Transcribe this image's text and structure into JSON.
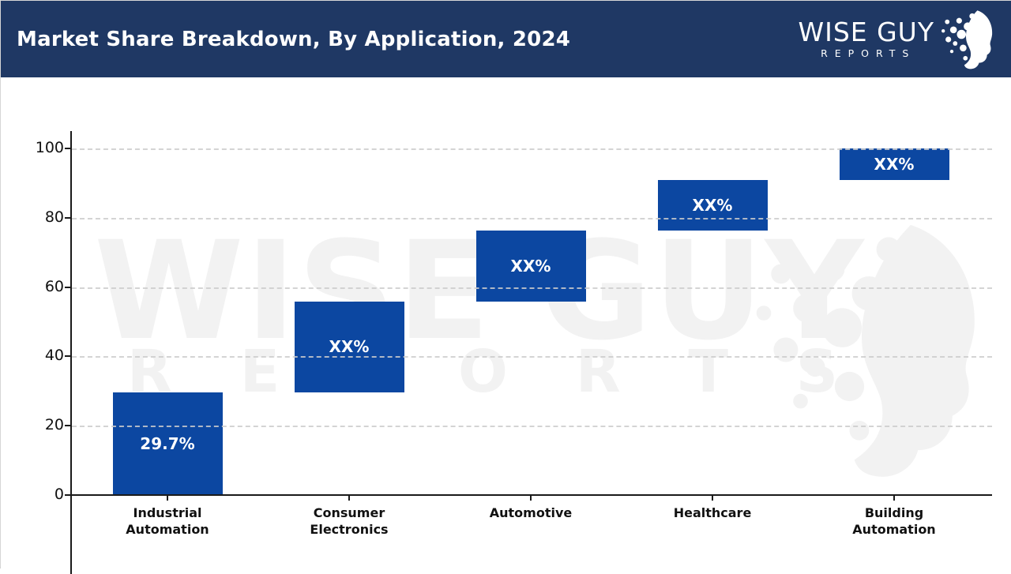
{
  "header": {
    "title": "Market Share Breakdown, By Application, 2024",
    "bg_color": "#1f3864",
    "logo": {
      "line1": "WISE GUY",
      "line2": "REPORTS"
    }
  },
  "watermark": {
    "line1": "WISE GUY",
    "line2": "REPORTS"
  },
  "chart_data": {
    "type": "bar",
    "subtype": "waterfall-floating-bars",
    "title": "Market Share Breakdown, By Application, 2024",
    "categories": [
      "Industrial Automation",
      "Consumer Electronics",
      "Automotive",
      "Healthcare",
      "Building Automation"
    ],
    "category_label_lines": [
      [
        "Industrial",
        "Automation"
      ],
      [
        "Consumer",
        "Electronics"
      ],
      [
        "Automotive"
      ],
      [
        "Healthcare"
      ],
      [
        "Building",
        "Automation"
      ]
    ],
    "segments": [
      {
        "category": "Industrial Automation",
        "start": 0,
        "end": 29.7,
        "label": "29.7%"
      },
      {
        "category": "Consumer Electronics",
        "start": 29.7,
        "end": 55.8,
        "label": "XX%"
      },
      {
        "category": "Automotive",
        "start": 55.8,
        "end": 76.2,
        "label": "XX%"
      },
      {
        "category": "Healthcare",
        "start": 76.2,
        "end": 90.9,
        "label": "XX%"
      },
      {
        "category": "Building Automation",
        "start": 90.9,
        "end": 100,
        "label": "XX%"
      }
    ],
    "xlabel": "",
    "ylabel": "",
    "y_ticks": [
      0,
      20,
      40,
      60,
      80,
      100
    ],
    "ylim": [
      0,
      105
    ],
    "bar_color": "#0c47a1",
    "grid": "horizontal-dashed",
    "legend": false
  }
}
